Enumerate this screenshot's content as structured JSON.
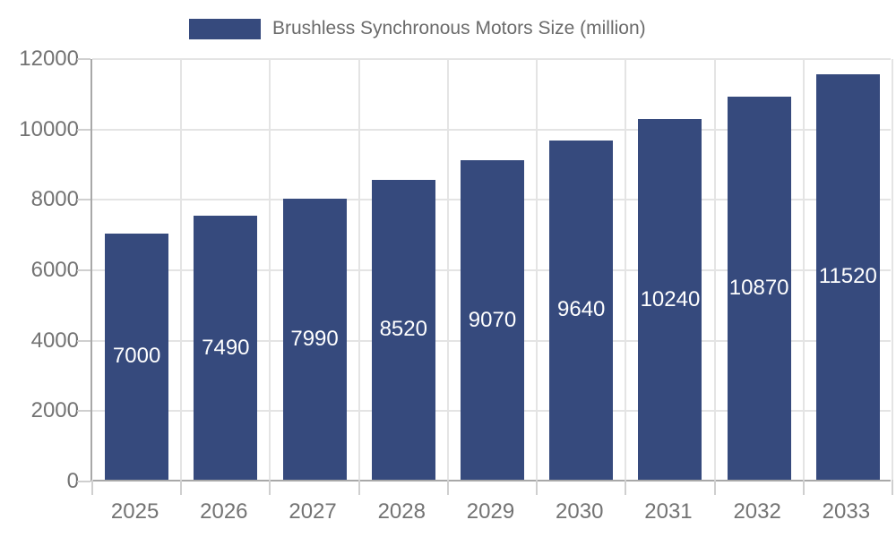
{
  "legend": {
    "label": "Brushless Synchronous Motors Size (million)"
  },
  "colors": {
    "bar": "#364a7d",
    "grid": "#e4e4e4",
    "tick": "#cfcfcf",
    "axis_line": "#a8a8a8",
    "axis_text": "#737373",
    "legend_text": "#6b6b6b",
    "bar_label": "#ffffff",
    "background": "#ffffff"
  },
  "chart_data": {
    "type": "bar",
    "title": "",
    "series_name": "Brushless Synchronous Motors Size (million)",
    "categories": [
      "2025",
      "2026",
      "2027",
      "2028",
      "2029",
      "2030",
      "2031",
      "2032",
      "2033"
    ],
    "values": [
      7000,
      7490,
      7990,
      8520,
      9070,
      9640,
      10240,
      10870,
      11520
    ],
    "xlabel": "",
    "ylabel": "",
    "ylim": [
      0,
      12000
    ],
    "yticks": [
      0,
      2000,
      4000,
      6000,
      8000,
      10000,
      12000
    ],
    "grid": "horizontal gridlines at y ticks and vertical gridlines at category boundaries",
    "legend_position": "top-center",
    "value_labels": "white, centered inside each bar"
  }
}
